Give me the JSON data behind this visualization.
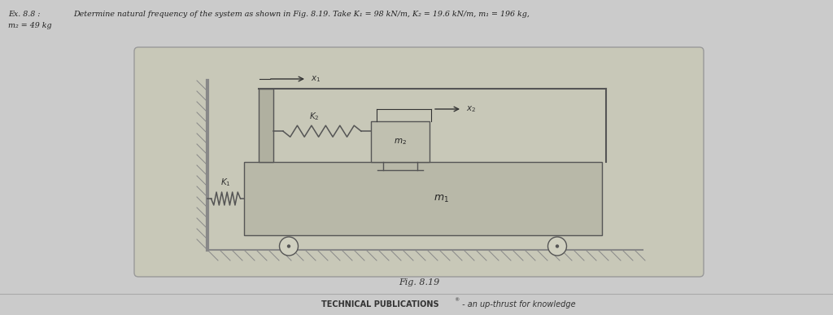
{
  "page_bg": "#cbcbcb",
  "diagram_bg": "#c8c8b8",
  "diagram_border": "#999999",
  "wall_color": "#888888",
  "wall_hatch_color": "#888888",
  "ground_color": "#888888",
  "ground_hatch_color": "#888888",
  "m1_fill": "#b8b8a8",
  "m1_edge": "#555555",
  "m2_fill": "#c0c0b0",
  "m2_edge": "#555555",
  "pillar_fill": "#b0b0a0",
  "pillar_edge": "#555555",
  "spring_color": "#555555",
  "arrow_color": "#333333",
  "label_color": "#333333",
  "wheel_fill": "#d0d0c0",
  "wheel_edge": "#555555",
  "line_color": "#555555",
  "text_color": "#222222",
  "footer_line_color": "#888888",
  "title_line1": "Ex. 8.8 :      Determine natural frequency of the system as shown in Fig. 8.19. Take K",
  "title_line1b": "1",
  "title_line1c": " = 98 kN/m, K",
  "title_line1d": "2",
  "title_line1e": " = 19.6 kN/m, m",
  "title_line1f": "1",
  "title_line1g": " = 196 kg,",
  "title_line2": "m",
  "title_line2b": "2",
  "title_line2c": " = 49 kg",
  "fig_caption": "Fig. 8.19",
  "footer_main": "TECHNICAL PUBLICATIONS",
  "footer_reg": "®",
  "footer_sub": " - an up-thrust for knowledge"
}
